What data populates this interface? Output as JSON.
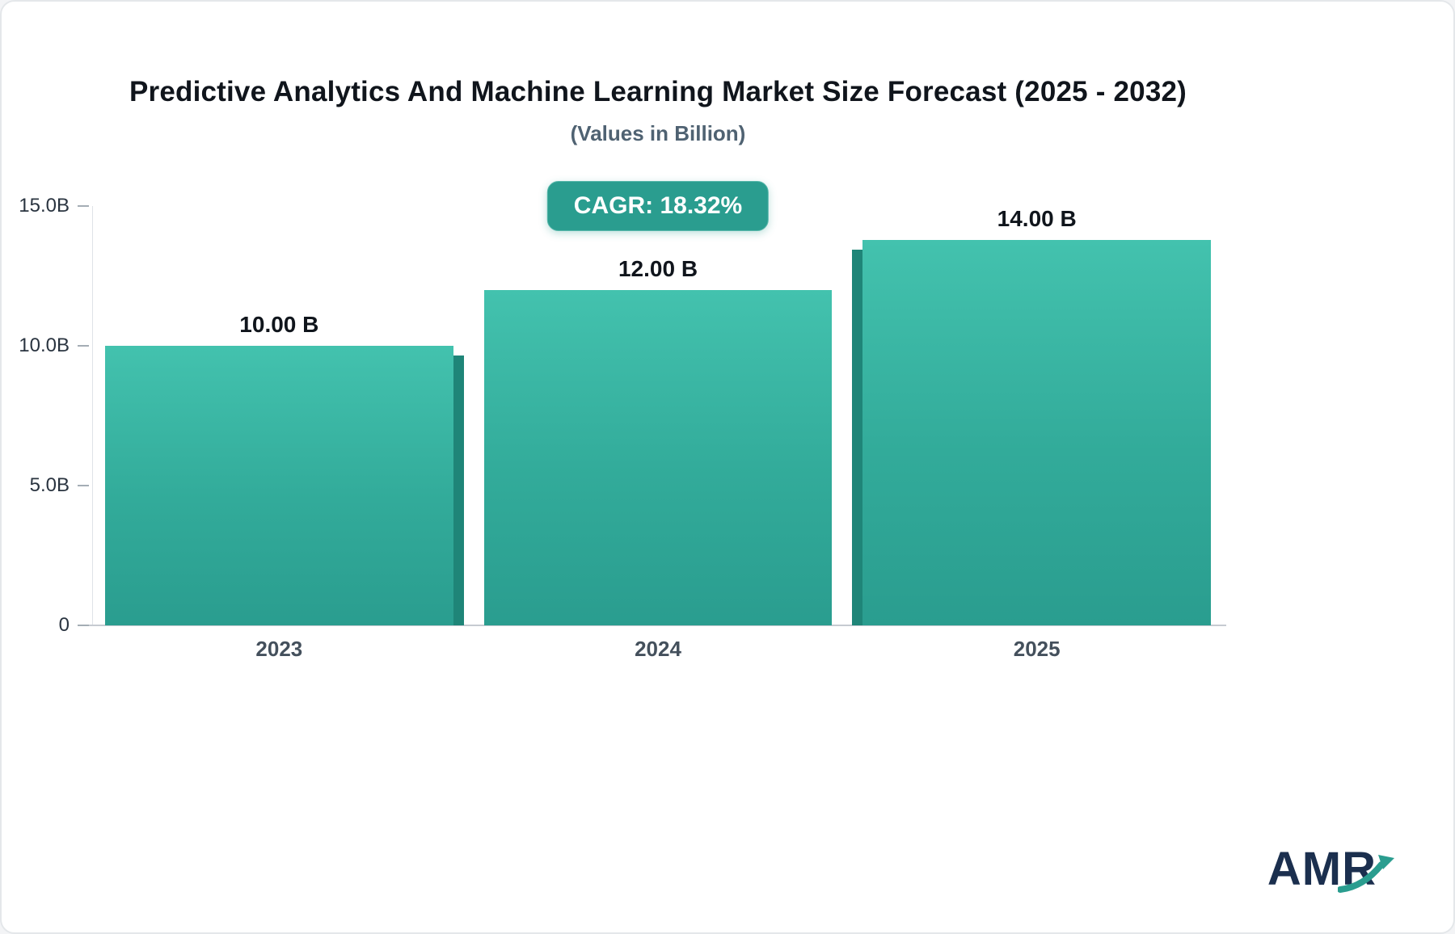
{
  "header": {
    "title": "Predictive Analytics And Machine Learning Market Size Forecast (2025 - 2032)",
    "subtitle": "(Values in Billion)"
  },
  "badge": {
    "label": "CAGR: 18.32%"
  },
  "logo": {
    "text": "AMR"
  },
  "colors": {
    "accent": "#2a9d8f",
    "bar_top": "#43c2ae",
    "bar_bottom": "#2a9d8f",
    "bar_edge": "#1f8578",
    "title": "#10151c",
    "logo": "#1b2f4e"
  },
  "chart_data": {
    "type": "bar",
    "title": "Predictive Analytics And Machine Learning Market Size Forecast (2025 - 2032)",
    "subtitle": "(Values in Billion)",
    "categories": [
      "2023",
      "2024",
      "2025"
    ],
    "values": [
      10,
      12,
      14
    ],
    "value_labels": [
      "10.00 B",
      "12.00 B",
      "14.00 B"
    ],
    "annotations": [
      "CAGR: 18.32%"
    ],
    "xlabel": "",
    "ylabel": "",
    "ylim": [
      0,
      15
    ],
    "yticks": [
      {
        "value": 0,
        "label": "0"
      },
      {
        "value": 5,
        "label": "5.0B"
      },
      {
        "value": 10,
        "label": "10.0B"
      },
      {
        "value": 15,
        "label": "15.0B"
      }
    ],
    "grid": false,
    "legend": "none"
  }
}
